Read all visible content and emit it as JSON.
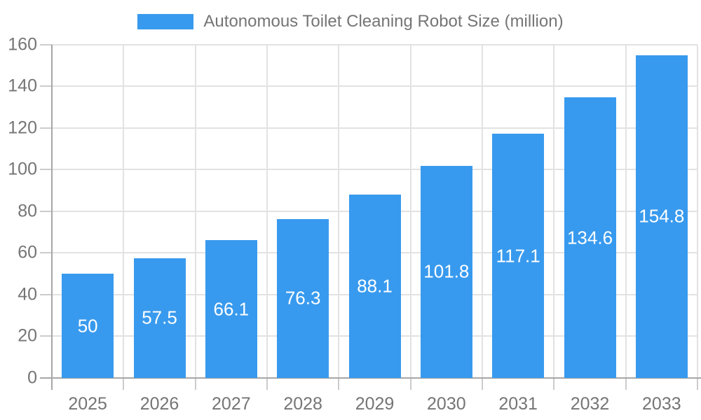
{
  "chart_data": {
    "type": "bar",
    "title": "Autonomous Toilet Cleaning Robot Size (million)",
    "categories": [
      "2025",
      "2026",
      "2027",
      "2028",
      "2029",
      "2030",
      "2031",
      "2032",
      "2033"
    ],
    "values": [
      50,
      57.5,
      66.1,
      76.3,
      88.1,
      101.8,
      117.1,
      134.6,
      154.8
    ],
    "value_labels": [
      "50",
      "57.5",
      "66.1",
      "76.3",
      "88.1",
      "101.8",
      "117.1",
      "134.6",
      "154.8"
    ],
    "xlabel": "",
    "ylabel": "",
    "ylim": [
      0,
      160
    ],
    "yticks": [
      0,
      20,
      40,
      60,
      80,
      100,
      120,
      140,
      160
    ],
    "grid": true,
    "legend_position": "top-center",
    "colors": {
      "bar": "#389aee",
      "bar_label": "#ffffff",
      "grid": "#e2e2e2",
      "axis": "#a6a6a6",
      "tick": "#cccccc",
      "text": "#757575",
      "background": "#ffffff"
    }
  }
}
